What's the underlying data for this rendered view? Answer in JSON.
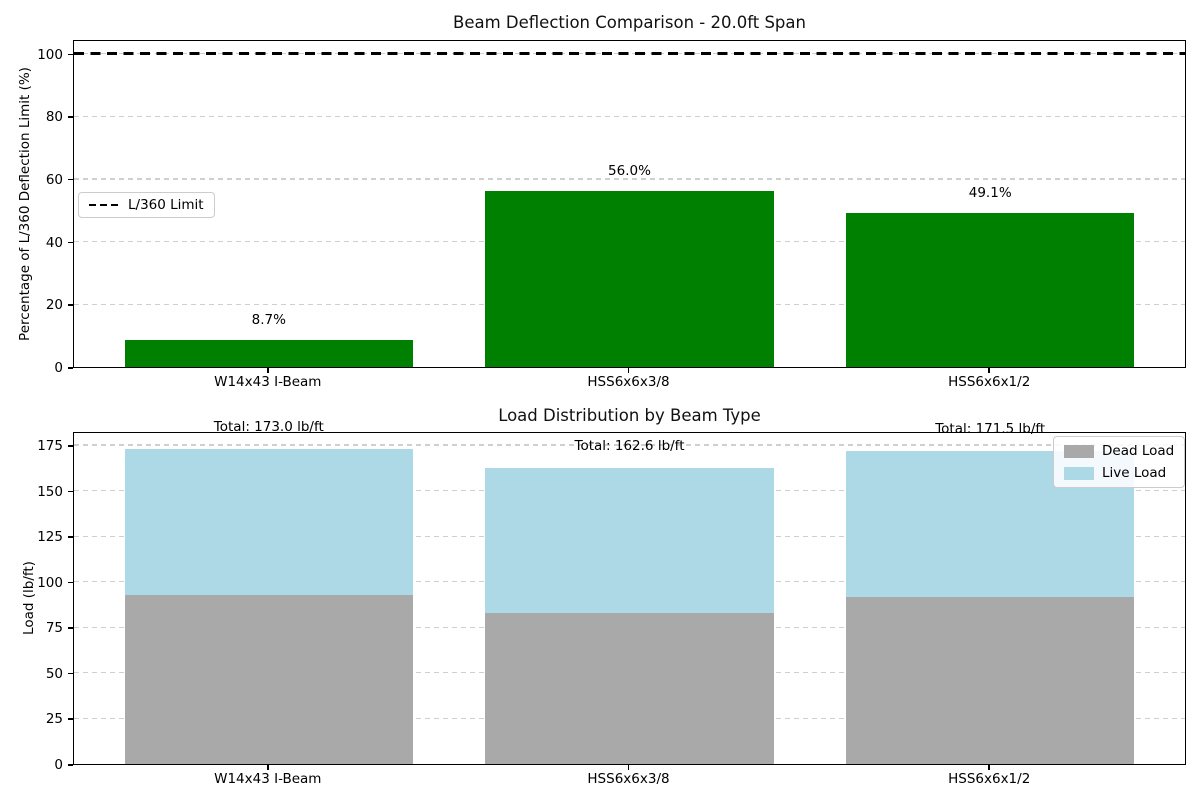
{
  "figure": {
    "background": "#ffffff",
    "grid_color": "#cfcfcf",
    "spine_color": "#000000"
  },
  "chart_data": [
    {
      "type": "bar",
      "title": "Beam Deflection Comparison - 20.0ft Span",
      "xlabel": "",
      "ylabel": "Percentage of L/360 Deflection Limit (%)",
      "categories": [
        "W14x43 I-Beam",
        "HSS6x6x3/8",
        "HSS6x6x1/2"
      ],
      "values": [
        8.7,
        56.0,
        49.1
      ],
      "value_labels": [
        "8.7%",
        "56.0%",
        "49.1%"
      ],
      "bar_color": "#008000",
      "yticks": [
        0,
        20,
        40,
        60,
        80,
        100
      ],
      "ylim": [
        0,
        104
      ],
      "grid": "dashed-y",
      "reference_line": {
        "value": 100,
        "style": "dashed",
        "color": "#000000",
        "label": "L/360 Limit"
      },
      "legend": {
        "position": "center-left",
        "entries": [
          {
            "label": "L/360 Limit",
            "swatch": "dashed-line",
            "color": "#000000"
          }
        ]
      }
    },
    {
      "type": "stacked-bar",
      "title": "Load Distribution by Beam Type",
      "xlabel": "",
      "ylabel": "Load (lb/ft)",
      "categories": [
        "W14x43 I-Beam",
        "HSS6x6x3/8",
        "HSS6x6x1/2"
      ],
      "series": [
        {
          "name": "Dead Load",
          "color": "#a9a9a9",
          "values": [
            93.0,
            82.6,
            91.5
          ]
        },
        {
          "name": "Live Load",
          "color": "#add8e6",
          "values": [
            80.0,
            80.0,
            80.0
          ]
        }
      ],
      "totals": [
        173.0,
        162.6,
        171.5
      ],
      "total_labels": [
        "Total: 173.0 lb/ft",
        "Total: 162.6 lb/ft",
        "Total: 171.5 lb/ft"
      ],
      "yticks": [
        0,
        25,
        50,
        75,
        100,
        125,
        150,
        175
      ],
      "ylim": [
        0,
        181.6
      ],
      "grid": "dashed-y",
      "legend": {
        "position": "upper-right",
        "entries": [
          {
            "label": "Dead Load",
            "swatch": "rect",
            "color": "#a9a9a9"
          },
          {
            "label": "Live Load",
            "swatch": "rect",
            "color": "#add8e6"
          }
        ]
      }
    }
  ]
}
